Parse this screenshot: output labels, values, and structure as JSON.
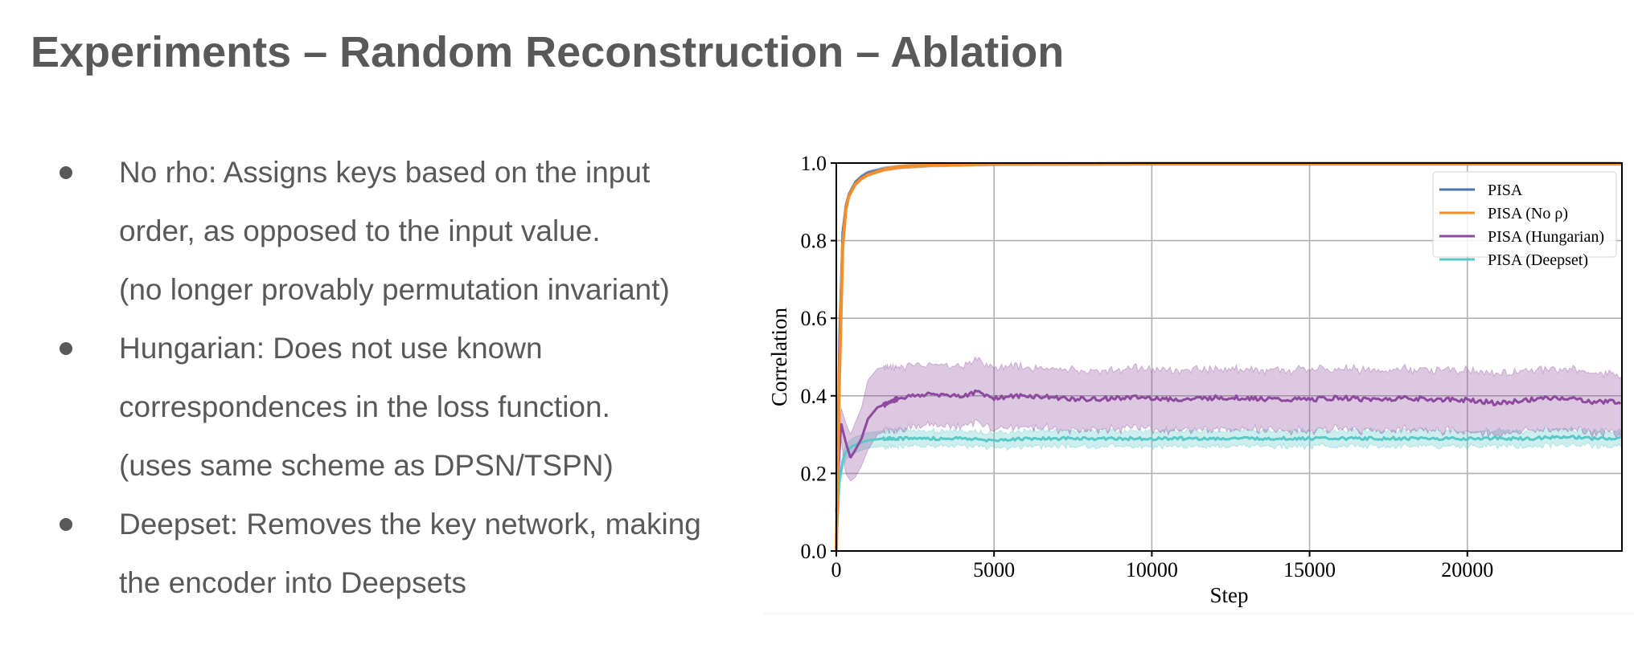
{
  "slide": {
    "title": "Experiments – Random Reconstruction – Ablation",
    "bullets": [
      {
        "lines": [
          "No rho: Assigns keys based on the input",
          "order, as opposed to the input value.",
          "(no longer provably permutation invariant)"
        ]
      },
      {
        "lines": [
          "Hungarian: Does not use known",
          "correspondences in the loss function.",
          "(uses same scheme as DPSN/TSPN)"
        ]
      },
      {
        "lines": [
          "Deepset: Removes the key network, making",
          "the encoder into Deepsets"
        ]
      }
    ]
  },
  "chart_data": {
    "type": "line",
    "title": "",
    "xlabel": "Step",
    "ylabel": "Correlation",
    "xlim": [
      0,
      24900
    ],
    "ylim": [
      0.0,
      1.0
    ],
    "xticks": [
      0,
      5000,
      10000,
      15000,
      20000
    ],
    "xtick_labels": [
      "0",
      "5000",
      "10000",
      "15000",
      "20000"
    ],
    "yticks": [
      0.0,
      0.2,
      0.4,
      0.6,
      0.8,
      1.0
    ],
    "ytick_labels": [
      "0.0",
      "0.2",
      "0.4",
      "0.6",
      "0.8",
      "1.0"
    ],
    "grid": true,
    "legend_position": "upper right",
    "series": [
      {
        "name": "PISA",
        "color": "#4c72b0",
        "x": [
          0,
          100,
          200,
          300,
          400,
          600,
          800,
          1000,
          1500,
          2000,
          3000,
          5000,
          10000,
          15000,
          20000,
          24900
        ],
        "y": [
          0.0,
          0.55,
          0.82,
          0.89,
          0.92,
          0.95,
          0.965,
          0.975,
          0.985,
          0.99,
          0.995,
          0.998,
          0.999,
          0.999,
          0.999,
          0.999
        ],
        "band": 0.005
      },
      {
        "name": "PISA (No ρ)",
        "color": "#f28e2b",
        "x": [
          0,
          100,
          200,
          300,
          400,
          600,
          800,
          1000,
          1500,
          2000,
          3000,
          5000,
          10000,
          15000,
          20000,
          24900
        ],
        "y": [
          0.0,
          0.45,
          0.78,
          0.88,
          0.915,
          0.945,
          0.96,
          0.97,
          0.983,
          0.99,
          0.995,
          0.998,
          0.999,
          0.999,
          0.999,
          0.999
        ],
        "band": 0.005
      },
      {
        "name": "PISA (Hungarian)",
        "color": "#8e4a9e",
        "x": [
          0,
          150,
          300,
          450,
          600,
          800,
          1000,
          1300,
          1600,
          2000,
          2500,
          3000,
          4000,
          4500,
          5000,
          6000,
          7000,
          8000,
          9000,
          10000,
          11000,
          12000,
          13000,
          14000,
          15000,
          16000,
          17000,
          18000,
          19000,
          20000,
          21000,
          22000,
          23000,
          24000,
          24900
        ],
        "y": [
          0.1,
          0.33,
          0.28,
          0.24,
          0.26,
          0.29,
          0.34,
          0.37,
          0.38,
          0.395,
          0.4,
          0.405,
          0.4,
          0.41,
          0.395,
          0.4,
          0.395,
          0.39,
          0.395,
          0.395,
          0.39,
          0.395,
          0.395,
          0.39,
          0.39,
          0.395,
          0.39,
          0.395,
          0.39,
          0.39,
          0.38,
          0.39,
          0.395,
          0.385,
          0.385
        ],
        "lower": [
          0.1,
          0.29,
          0.2,
          0.18,
          0.19,
          0.22,
          0.26,
          0.3,
          0.31,
          0.315,
          0.32,
          0.325,
          0.32,
          0.33,
          0.315,
          0.32,
          0.315,
          0.31,
          0.315,
          0.315,
          0.31,
          0.315,
          0.315,
          0.31,
          0.31,
          0.315,
          0.31,
          0.315,
          0.31,
          0.31,
          0.3,
          0.31,
          0.315,
          0.305,
          0.305
        ],
        "upper": [
          0.1,
          0.37,
          0.33,
          0.3,
          0.33,
          0.37,
          0.44,
          0.47,
          0.475,
          0.475,
          0.48,
          0.48,
          0.475,
          0.49,
          0.475,
          0.475,
          0.47,
          0.465,
          0.47,
          0.47,
          0.465,
          0.47,
          0.47,
          0.465,
          0.465,
          0.47,
          0.465,
          0.47,
          0.465,
          0.465,
          0.455,
          0.465,
          0.47,
          0.46,
          0.455
        ]
      },
      {
        "name": "PISA (Deepset)",
        "color": "#5bc8c8",
        "x": [
          0,
          100,
          200,
          300,
          500,
          800,
          1000,
          1500,
          2000,
          3000,
          4000,
          5000,
          6000,
          7000,
          8000,
          9000,
          10000,
          11000,
          12000,
          13000,
          14000,
          15000,
          16000,
          17000,
          18000,
          19000,
          20000,
          21000,
          22000,
          23000,
          24000,
          24900
        ],
        "y": [
          0.02,
          0.18,
          0.23,
          0.255,
          0.27,
          0.28,
          0.285,
          0.29,
          0.29,
          0.29,
          0.29,
          0.285,
          0.29,
          0.29,
          0.29,
          0.29,
          0.29,
          0.29,
          0.29,
          0.29,
          0.29,
          0.29,
          0.29,
          0.29,
          0.29,
          0.29,
          0.29,
          0.29,
          0.29,
          0.295,
          0.29,
          0.29
        ],
        "band": 0.02
      }
    ]
  }
}
